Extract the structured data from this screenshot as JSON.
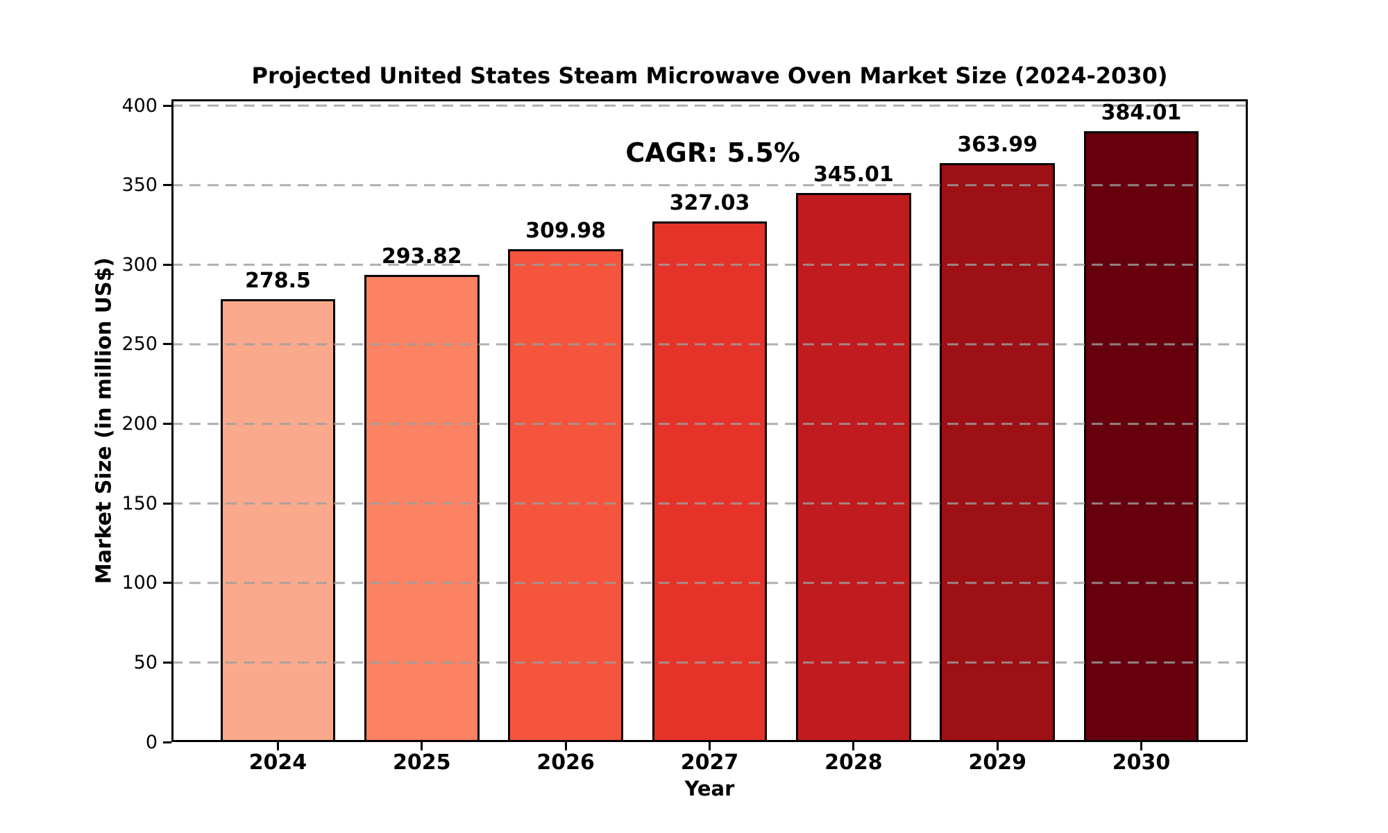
{
  "chart_data": {
    "type": "bar",
    "title": "Projected United States Steam Microwave Oven Market Size (2024-2030)",
    "xlabel": "Year",
    "ylabel": "Market Size (in million US$)",
    "categories": [
      "2024",
      "2025",
      "2026",
      "2027",
      "2028",
      "2029",
      "2030"
    ],
    "values": [
      278.5,
      293.82,
      309.98,
      327.03,
      345.01,
      363.99,
      384.01
    ],
    "value_labels": [
      "278.5",
      "293.82",
      "309.98",
      "327.03",
      "345.01",
      "363.99",
      "384.01"
    ],
    "bar_colors": [
      "#fba98c",
      "#fb8262",
      "#f4553c",
      "#e5332a",
      "#c01b1e",
      "#9d1015",
      "#67000d"
    ],
    "bar_edge_color": "#000000",
    "annotation": "CAGR: 5.5%",
    "yticks": [
      0,
      50,
      100,
      150,
      200,
      250,
      300,
      350,
      400
    ],
    "ylim": [
      0,
      404
    ],
    "xlim_units": [
      -0.74,
      6.74
    ],
    "bar_width_units": 0.8,
    "grid": {
      "axis": "y",
      "style": "dashed",
      "color": "#b4b4b4",
      "above_bars": true
    },
    "legend": "none",
    "background_color": "#ffffff"
  }
}
